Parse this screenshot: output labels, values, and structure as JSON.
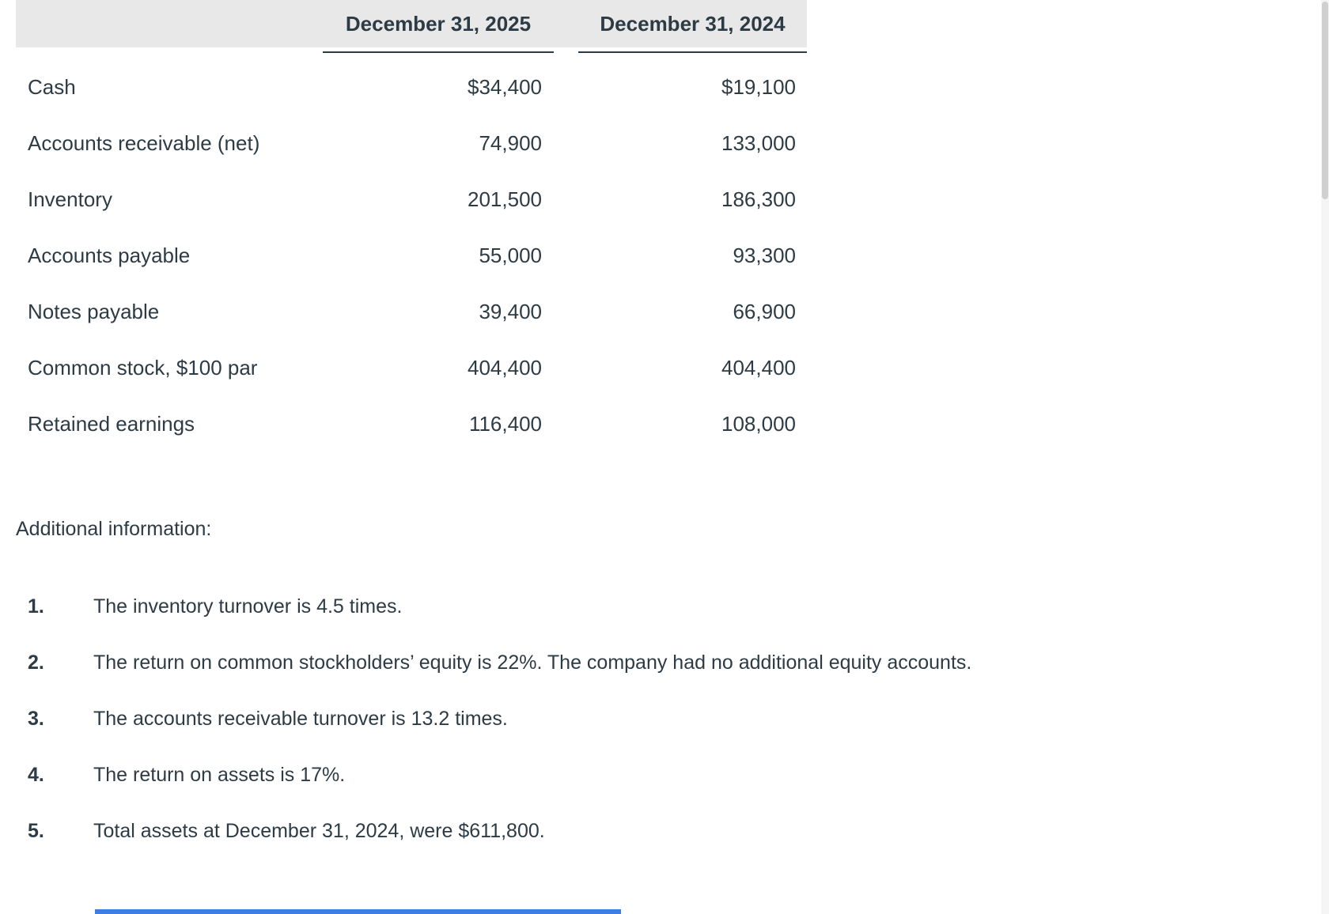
{
  "table": {
    "col_headers": [
      "December 31, 2025",
      "December 31, 2024"
    ],
    "rows": [
      {
        "label": "Cash",
        "v2025": "$34,400",
        "v2024": "$19,100"
      },
      {
        "label": "Accounts receivable (net)",
        "v2025": "74,900",
        "v2024": "133,000"
      },
      {
        "label": "Inventory",
        "v2025": "201,500",
        "v2024": "186,300"
      },
      {
        "label": "Accounts payable",
        "v2025": "55,000",
        "v2024": "93,300"
      },
      {
        "label": "Notes payable",
        "v2025": "39,400",
        "v2024": "66,900"
      },
      {
        "label": "Common stock, $100 par",
        "v2025": "404,400",
        "v2024": "404,400"
      },
      {
        "label": "Retained earnings",
        "v2025": "116,400",
        "v2024": "108,000"
      }
    ]
  },
  "additional": {
    "heading": "Additional information:",
    "items": [
      {
        "num": "1.",
        "text": "The inventory turnover is 4.5 times."
      },
      {
        "num": "2.",
        "text": "The return on common stockholders’ equity is 22%. The company had no additional equity accounts."
      },
      {
        "num": "3.",
        "text": "The accounts receivable turnover is 13.2 times."
      },
      {
        "num": "4.",
        "text": "The return on assets is 17%."
      },
      {
        "num": "5.",
        "text": "Total assets at December 31, 2024, were $611,800."
      }
    ]
  },
  "colors": {
    "header_bg": "#e8e8e8",
    "text": "#2d3b45",
    "accent_bar": "#3d7de4"
  }
}
